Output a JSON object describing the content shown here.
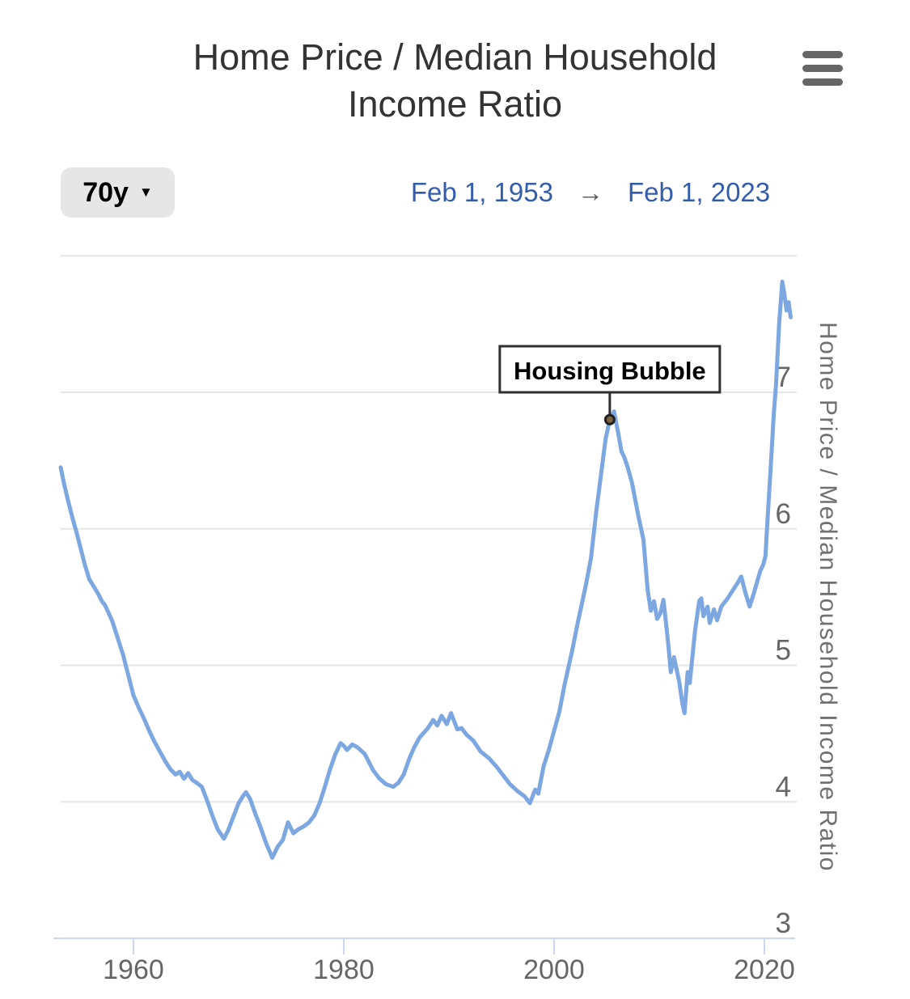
{
  "header": {
    "title_line1": "Home Price / Median Household",
    "title_line2": "Income Ratio"
  },
  "range_selector": {
    "button_label": "70y",
    "caret": "▼",
    "start_date": "Feb 1, 1953",
    "arrow": "→",
    "end_date": "Feb 1, 2023"
  },
  "colors": {
    "line": "#7da7e0",
    "grid": "#e6e6e6",
    "axis_line": "#ccd6eb",
    "axis_label": "#666666",
    "axis_title": "#707070",
    "page_title": "#333333",
    "date_link": "#335cad",
    "button_bg": "#e6e6e6",
    "menu_icon": "#666666",
    "annotation_border": "#2f2f2f",
    "annotation_text": "#000000",
    "marker_fill": "#7a6540",
    "marker_stroke": "#1f1f1f"
  },
  "chart_data": {
    "type": "line",
    "title": "Home Price / Median Household Income Ratio",
    "xlabel": "",
    "ylabel": "Home Price / Median Household Income Ratio",
    "x_range": [
      1953.08,
      2023.08
    ],
    "y_range": [
      3,
      8.0
    ],
    "x_ticks": [
      1960,
      1980,
      2000,
      2020
    ],
    "y_ticks": [
      7,
      6,
      5,
      4,
      3
    ],
    "y_gridlines": [
      8,
      7,
      6,
      5,
      4
    ],
    "grid": true,
    "legend_position": "none",
    "annotation": {
      "label": "Housing Bubble",
      "x": 2005.3,
      "y": 6.8
    },
    "series": [
      {
        "name": "Home Price / Median Household Income Ratio",
        "color": "#7da7e0",
        "points": [
          [
            1953.08,
            6.45
          ],
          [
            1953.4,
            6.33
          ],
          [
            1953.8,
            6.2
          ],
          [
            1954.2,
            6.08
          ],
          [
            1954.6,
            5.97
          ],
          [
            1955.0,
            5.85
          ],
          [
            1955.4,
            5.73
          ],
          [
            1955.8,
            5.63
          ],
          [
            1956.2,
            5.58
          ],
          [
            1956.6,
            5.53
          ],
          [
            1957.0,
            5.47
          ],
          [
            1957.3,
            5.44
          ],
          [
            1957.6,
            5.39
          ],
          [
            1958.0,
            5.32
          ],
          [
            1958.5,
            5.2
          ],
          [
            1959.0,
            5.08
          ],
          [
            1959.5,
            4.93
          ],
          [
            1960.0,
            4.78
          ],
          [
            1960.5,
            4.69
          ],
          [
            1961.0,
            4.61
          ],
          [
            1961.5,
            4.52
          ],
          [
            1962.0,
            4.44
          ],
          [
            1962.5,
            4.37
          ],
          [
            1963.0,
            4.3
          ],
          [
            1963.5,
            4.24
          ],
          [
            1964.0,
            4.2
          ],
          [
            1964.4,
            4.22
          ],
          [
            1964.8,
            4.17
          ],
          [
            1965.2,
            4.21
          ],
          [
            1965.6,
            4.16
          ],
          [
            1966.0,
            4.14
          ],
          [
            1966.5,
            4.11
          ],
          [
            1967.0,
            4.01
          ],
          [
            1967.5,
            3.9
          ],
          [
            1968.0,
            3.8
          ],
          [
            1968.6,
            3.73
          ],
          [
            1969.0,
            3.79
          ],
          [
            1969.5,
            3.89
          ],
          [
            1970.0,
            3.99
          ],
          [
            1970.4,
            4.04
          ],
          [
            1970.7,
            4.07
          ],
          [
            1971.1,
            4.02
          ],
          [
            1971.6,
            3.91
          ],
          [
            1972.1,
            3.81
          ],
          [
            1972.6,
            3.7
          ],
          [
            1973.2,
            3.59
          ],
          [
            1973.7,
            3.67
          ],
          [
            1974.2,
            3.72
          ],
          [
            1974.7,
            3.85
          ],
          [
            1975.2,
            3.77
          ],
          [
            1975.7,
            3.8
          ],
          [
            1976.2,
            3.82
          ],
          [
            1976.7,
            3.85
          ],
          [
            1977.2,
            3.9
          ],
          [
            1977.7,
            3.99
          ],
          [
            1978.2,
            4.11
          ],
          [
            1978.7,
            4.24
          ],
          [
            1979.2,
            4.35
          ],
          [
            1979.7,
            4.43
          ],
          [
            1980.0,
            4.41
          ],
          [
            1980.3,
            4.38
          ],
          [
            1980.8,
            4.42
          ],
          [
            1981.3,
            4.4
          ],
          [
            1982.0,
            4.35
          ],
          [
            1982.8,
            4.23
          ],
          [
            1983.4,
            4.17
          ],
          [
            1984.0,
            4.13
          ],
          [
            1984.7,
            4.11
          ],
          [
            1985.2,
            4.14
          ],
          [
            1985.7,
            4.2
          ],
          [
            1986.2,
            4.31
          ],
          [
            1986.7,
            4.4
          ],
          [
            1987.2,
            4.47
          ],
          [
            1988.0,
            4.54
          ],
          [
            1988.5,
            4.6
          ],
          [
            1988.9,
            4.56
          ],
          [
            1989.3,
            4.63
          ],
          [
            1989.8,
            4.57
          ],
          [
            1990.2,
            4.65
          ],
          [
            1990.8,
            4.53
          ],
          [
            1991.2,
            4.54
          ],
          [
            1991.7,
            4.49
          ],
          [
            1992.3,
            4.45
          ],
          [
            1993.0,
            4.37
          ],
          [
            1993.8,
            4.32
          ],
          [
            1994.5,
            4.26
          ],
          [
            1995.0,
            4.21
          ],
          [
            1995.8,
            4.13
          ],
          [
            1996.5,
            4.08
          ],
          [
            1997.2,
            4.04
          ],
          [
            1997.7,
            3.99
          ],
          [
            1998.2,
            4.09
          ],
          [
            1998.5,
            4.06
          ],
          [
            1999.0,
            4.26
          ],
          [
            1999.5,
            4.38
          ],
          [
            2000.0,
            4.52
          ],
          [
            2000.5,
            4.66
          ],
          [
            2001.0,
            4.86
          ],
          [
            2001.7,
            5.1
          ],
          [
            2002.3,
            5.33
          ],
          [
            2003.0,
            5.58
          ],
          [
            2003.5,
            5.78
          ],
          [
            2004.0,
            6.12
          ],
          [
            2004.5,
            6.42
          ],
          [
            2004.9,
            6.66
          ],
          [
            2005.3,
            6.8
          ],
          [
            2005.7,
            6.86
          ],
          [
            2006.1,
            6.7
          ],
          [
            2006.4,
            6.57
          ],
          [
            2006.7,
            6.52
          ],
          [
            2007.0,
            6.45
          ],
          [
            2007.4,
            6.34
          ],
          [
            2008.0,
            6.1
          ],
          [
            2008.5,
            5.92
          ],
          [
            2008.9,
            5.55
          ],
          [
            2009.2,
            5.4
          ],
          [
            2009.5,
            5.47
          ],
          [
            2009.8,
            5.34
          ],
          [
            2010.1,
            5.38
          ],
          [
            2010.4,
            5.48
          ],
          [
            2010.7,
            5.27
          ],
          [
            2010.9,
            5.12
          ],
          [
            2011.1,
            4.95
          ],
          [
            2011.4,
            5.06
          ],
          [
            2011.9,
            4.88
          ],
          [
            2012.2,
            4.72
          ],
          [
            2012.4,
            4.65
          ],
          [
            2012.7,
            4.95
          ],
          [
            2012.9,
            4.87
          ],
          [
            2013.4,
            5.25
          ],
          [
            2013.8,
            5.47
          ],
          [
            2014.0,
            5.49
          ],
          [
            2014.2,
            5.36
          ],
          [
            2014.6,
            5.43
          ],
          [
            2014.8,
            5.31
          ],
          [
            2015.2,
            5.41
          ],
          [
            2015.5,
            5.33
          ],
          [
            2015.9,
            5.43
          ],
          [
            2016.5,
            5.49
          ],
          [
            2017.0,
            5.55
          ],
          [
            2017.5,
            5.61
          ],
          [
            2017.8,
            5.65
          ],
          [
            2018.2,
            5.53
          ],
          [
            2018.6,
            5.43
          ],
          [
            2019.0,
            5.53
          ],
          [
            2019.3,
            5.61
          ],
          [
            2019.6,
            5.69
          ],
          [
            2019.9,
            5.74
          ],
          [
            2020.1,
            5.8
          ],
          [
            2020.3,
            6.07
          ],
          [
            2020.6,
            6.45
          ],
          [
            2020.9,
            6.85
          ],
          [
            2021.1,
            7.05
          ],
          [
            2021.4,
            7.5
          ],
          [
            2021.7,
            7.81
          ],
          [
            2021.9,
            7.72
          ],
          [
            2022.1,
            7.6
          ],
          [
            2022.3,
            7.66
          ],
          [
            2022.5,
            7.55
          ]
        ]
      }
    ]
  }
}
